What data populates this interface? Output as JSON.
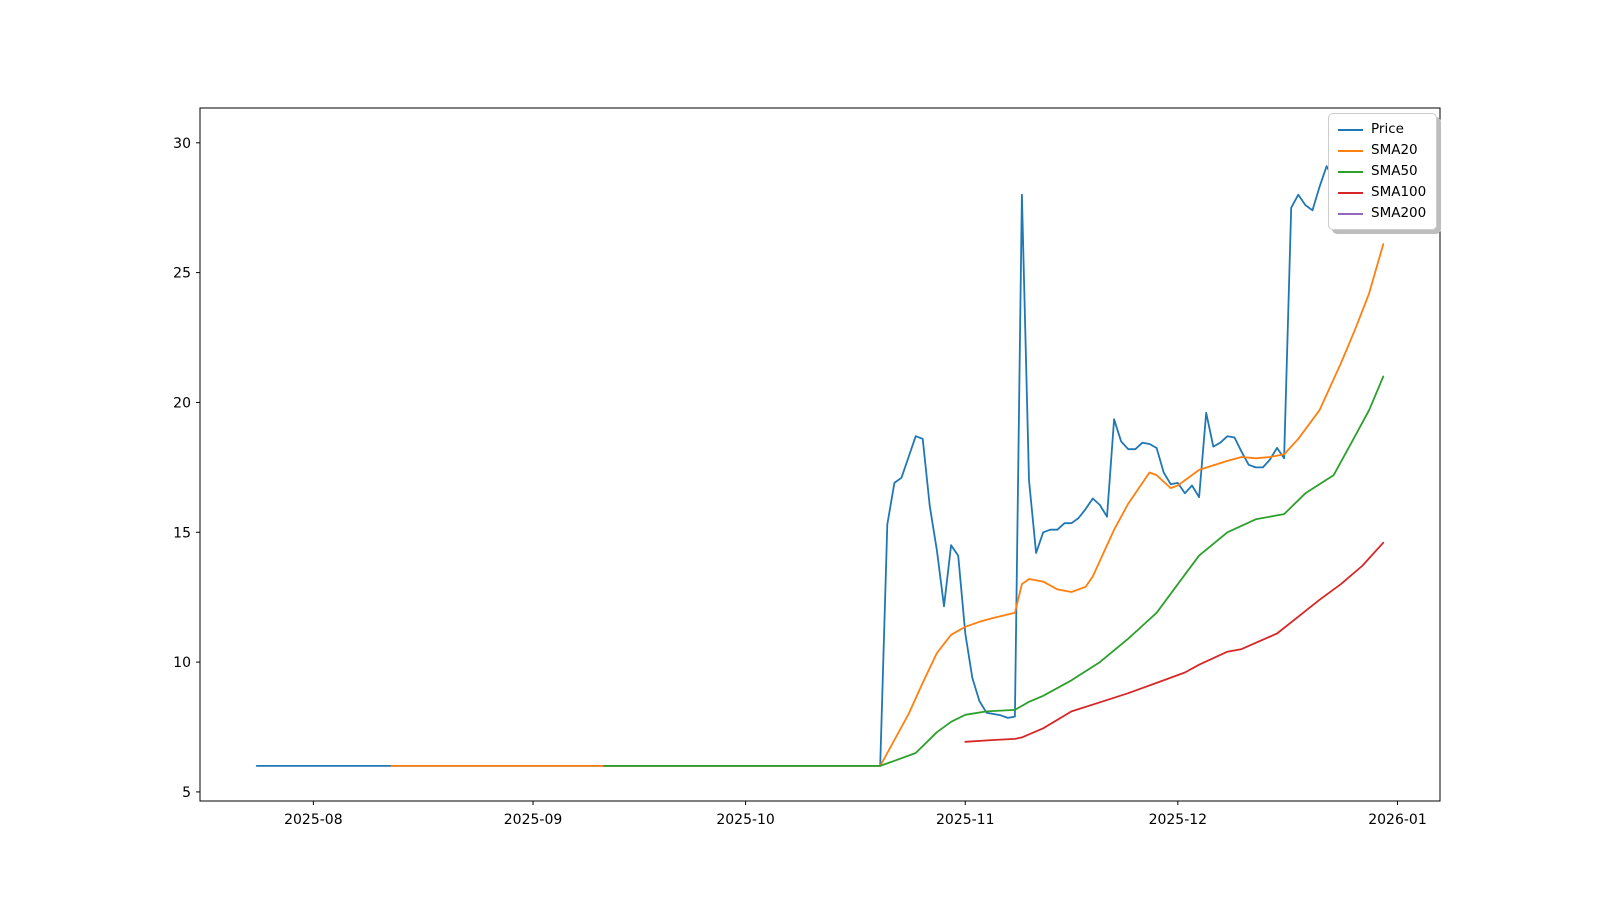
{
  "figure": {
    "background": "#ffffff",
    "text_color": "#000000"
  },
  "chart_data": {
    "type": "line",
    "title": "",
    "xlabel": "",
    "ylabel": "",
    "grid": false,
    "legend": {
      "position": "upper right",
      "entries": [
        "Price",
        "SMA20",
        "SMA50",
        "SMA100",
        "SMA200"
      ]
    },
    "x_axis": {
      "domain": [
        "2025-07-16",
        "2026-01-07"
      ],
      "ticks": [
        {
          "value": "2025-08-01",
          "label": "2025-08"
        },
        {
          "value": "2025-09-01",
          "label": "2025-09"
        },
        {
          "value": "2025-10-01",
          "label": "2025-10"
        },
        {
          "value": "2025-11-01",
          "label": "2025-11"
        },
        {
          "value": "2025-12-01",
          "label": "2025-12"
        },
        {
          "value": "2026-01-01",
          "label": "2026-01"
        }
      ]
    },
    "y_axis": {
      "domain": [
        4.65,
        31.34
      ],
      "ticks": [
        5,
        10,
        15,
        20,
        25,
        30
      ]
    },
    "series": [
      {
        "name": "Price",
        "color": "#1f77b4",
        "points": [
          [
            "2025-07-24",
            6.0
          ],
          [
            "2025-08-15",
            6.0
          ],
          [
            "2025-09-15",
            6.0
          ],
          [
            "2025-10-20",
            6.0
          ],
          [
            "2025-10-21",
            15.3
          ],
          [
            "2025-10-22",
            16.9
          ],
          [
            "2025-10-23",
            17.1
          ],
          [
            "2025-10-24",
            17.9
          ],
          [
            "2025-10-25",
            18.7
          ],
          [
            "2025-10-26",
            18.6
          ],
          [
            "2025-10-27",
            16.0
          ],
          [
            "2025-10-28",
            14.3
          ],
          [
            "2025-10-29",
            12.15
          ],
          [
            "2025-10-30",
            14.5
          ],
          [
            "2025-10-31",
            14.1
          ],
          [
            "2025-11-01",
            11.1
          ],
          [
            "2025-11-02",
            9.4
          ],
          [
            "2025-11-03",
            8.5
          ],
          [
            "2025-11-04",
            8.05
          ],
          [
            "2025-11-05",
            8.0
          ],
          [
            "2025-11-06",
            7.95
          ],
          [
            "2025-11-07",
            7.85
          ],
          [
            "2025-11-08",
            7.9
          ],
          [
            "2025-11-09",
            28.0
          ],
          [
            "2025-11-10",
            17.0
          ],
          [
            "2025-11-11",
            14.2
          ],
          [
            "2025-11-12",
            15.0
          ],
          [
            "2025-11-13",
            15.1
          ],
          [
            "2025-11-14",
            15.1
          ],
          [
            "2025-11-15",
            15.35
          ],
          [
            "2025-11-16",
            15.35
          ],
          [
            "2025-11-17",
            15.55
          ],
          [
            "2025-11-18",
            15.9
          ],
          [
            "2025-11-19",
            16.3
          ],
          [
            "2025-11-20",
            16.05
          ],
          [
            "2025-11-21",
            15.6
          ],
          [
            "2025-11-22",
            19.35
          ],
          [
            "2025-11-23",
            18.5
          ],
          [
            "2025-11-24",
            18.2
          ],
          [
            "2025-11-25",
            18.2
          ],
          [
            "2025-11-26",
            18.45
          ],
          [
            "2025-11-27",
            18.4
          ],
          [
            "2025-11-28",
            18.25
          ],
          [
            "2025-11-29",
            17.3
          ],
          [
            "2025-11-30",
            16.85
          ],
          [
            "2025-12-01",
            16.9
          ],
          [
            "2025-12-02",
            16.5
          ],
          [
            "2025-12-03",
            16.8
          ],
          [
            "2025-12-04",
            16.35
          ],
          [
            "2025-12-05",
            19.6
          ],
          [
            "2025-12-06",
            18.3
          ],
          [
            "2025-12-07",
            18.45
          ],
          [
            "2025-12-08",
            18.7
          ],
          [
            "2025-12-09",
            18.65
          ],
          [
            "2025-12-10",
            18.1
          ],
          [
            "2025-12-11",
            17.6
          ],
          [
            "2025-12-12",
            17.5
          ],
          [
            "2025-12-13",
            17.5
          ],
          [
            "2025-12-14",
            17.8
          ],
          [
            "2025-12-15",
            18.25
          ],
          [
            "2025-12-16",
            17.85
          ],
          [
            "2025-12-17",
            27.5
          ],
          [
            "2025-12-18",
            28.0
          ],
          [
            "2025-12-19",
            27.6
          ],
          [
            "2025-12-20",
            27.4
          ],
          [
            "2025-12-21",
            28.3
          ],
          [
            "2025-12-22",
            29.1
          ],
          [
            "2025-12-23",
            28.6
          ]
        ]
      },
      {
        "name": "SMA20",
        "color": "#ff7f0e",
        "points": [
          [
            "2025-08-12",
            6.0
          ],
          [
            "2025-09-15",
            6.0
          ],
          [
            "2025-10-20",
            6.0
          ],
          [
            "2025-10-21",
            6.5
          ],
          [
            "2025-10-22",
            7.0
          ],
          [
            "2025-10-24",
            8.0
          ],
          [
            "2025-10-26",
            9.2
          ],
          [
            "2025-10-28",
            10.35
          ],
          [
            "2025-10-30",
            11.05
          ],
          [
            "2025-11-01",
            11.36
          ],
          [
            "2025-11-03",
            11.55
          ],
          [
            "2025-11-05",
            11.7
          ],
          [
            "2025-11-08",
            11.9
          ],
          [
            "2025-11-09",
            13.0
          ],
          [
            "2025-11-10",
            13.2
          ],
          [
            "2025-11-12",
            13.1
          ],
          [
            "2025-11-14",
            12.8
          ],
          [
            "2025-11-16",
            12.7
          ],
          [
            "2025-11-18",
            12.9
          ],
          [
            "2025-11-19",
            13.3
          ],
          [
            "2025-11-22",
            15.1
          ],
          [
            "2025-11-24",
            16.1
          ],
          [
            "2025-11-27",
            17.3
          ],
          [
            "2025-11-28",
            17.2
          ],
          [
            "2025-11-30",
            16.7
          ],
          [
            "2025-12-01",
            16.8
          ],
          [
            "2025-12-04",
            17.4
          ],
          [
            "2025-12-08",
            17.75
          ],
          [
            "2025-12-10",
            17.9
          ],
          [
            "2025-12-12",
            17.85
          ],
          [
            "2025-12-14",
            17.9
          ],
          [
            "2025-12-16",
            18.0
          ],
          [
            "2025-12-18",
            18.6
          ],
          [
            "2025-12-21",
            19.7
          ],
          [
            "2025-12-24",
            21.5
          ],
          [
            "2025-12-26",
            22.8
          ],
          [
            "2025-12-28",
            24.2
          ],
          [
            "2025-12-30",
            26.1
          ]
        ]
      },
      {
        "name": "SMA50",
        "color": "#2ca02c",
        "points": [
          [
            "2025-09-11",
            6.0
          ],
          [
            "2025-10-20",
            6.0
          ],
          [
            "2025-10-22",
            6.2
          ],
          [
            "2025-10-25",
            6.5
          ],
          [
            "2025-10-28",
            7.3
          ],
          [
            "2025-10-30",
            7.7
          ],
          [
            "2025-11-01",
            7.97
          ],
          [
            "2025-11-04",
            8.1
          ],
          [
            "2025-11-08",
            8.16
          ],
          [
            "2025-11-10",
            8.47
          ],
          [
            "2025-11-12",
            8.7
          ],
          [
            "2025-11-16",
            9.3
          ],
          [
            "2025-11-20",
            10.0
          ],
          [
            "2025-11-24",
            10.9
          ],
          [
            "2025-11-28",
            11.9
          ],
          [
            "2025-12-01",
            13.0
          ],
          [
            "2025-12-04",
            14.1
          ],
          [
            "2025-12-08",
            15.0
          ],
          [
            "2025-12-12",
            15.5
          ],
          [
            "2025-12-15",
            15.65
          ],
          [
            "2025-12-16",
            15.7
          ],
          [
            "2025-12-19",
            16.5
          ],
          [
            "2025-12-23",
            17.2
          ],
          [
            "2025-12-26",
            18.7
          ],
          [
            "2025-12-28",
            19.7
          ],
          [
            "2025-12-30",
            21.0
          ]
        ]
      },
      {
        "name": "SMA100",
        "color": "#d62728",
        "points": [
          [
            "2025-11-01",
            6.93
          ],
          [
            "2025-11-05",
            7.0
          ],
          [
            "2025-11-08",
            7.04
          ],
          [
            "2025-11-09",
            7.1
          ],
          [
            "2025-11-12",
            7.45
          ],
          [
            "2025-11-16",
            8.1
          ],
          [
            "2025-11-20",
            8.45
          ],
          [
            "2025-11-24",
            8.8
          ],
          [
            "2025-11-28",
            9.2
          ],
          [
            "2025-12-02",
            9.6
          ],
          [
            "2025-12-04",
            9.9
          ],
          [
            "2025-12-08",
            10.4
          ],
          [
            "2025-12-10",
            10.5
          ],
          [
            "2025-12-15",
            11.1
          ],
          [
            "2025-12-18",
            11.75
          ],
          [
            "2025-12-21",
            12.4
          ],
          [
            "2025-12-24",
            13.0
          ],
          [
            "2025-12-27",
            13.7
          ],
          [
            "2025-12-30",
            14.6
          ]
        ]
      },
      {
        "name": "SMA200",
        "color": "#9467bd",
        "points": []
      }
    ]
  }
}
